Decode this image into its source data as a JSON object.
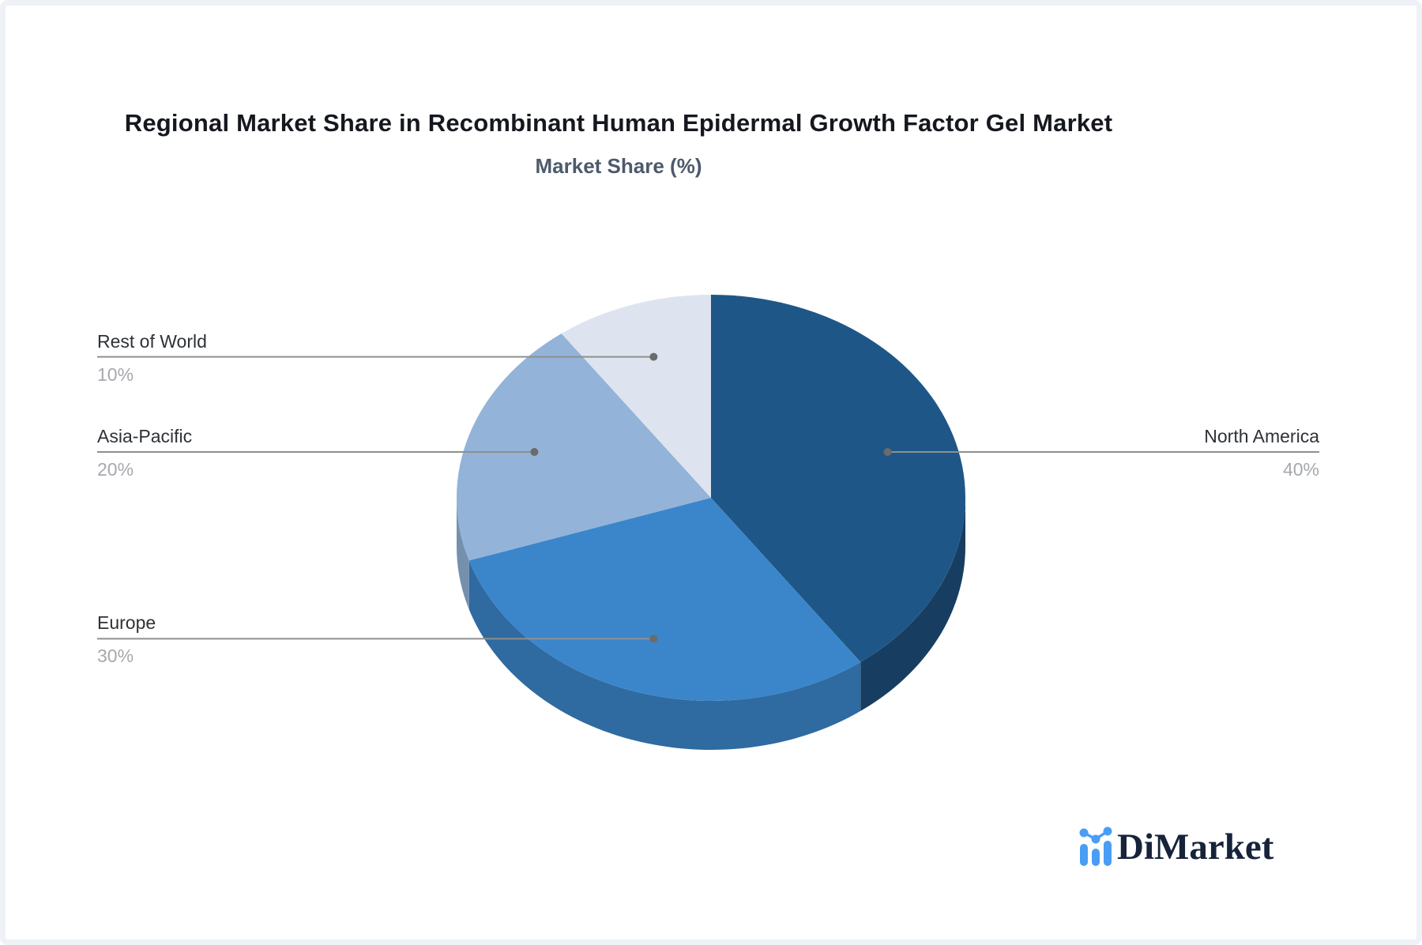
{
  "chart_data": {
    "type": "pie",
    "title": "Regional Market Share in Recombinant Human Epidermal Growth Factor Gel Market",
    "subtitle": "Market Share (%)",
    "unit": "%",
    "is_3d": true,
    "direction": "clockwise",
    "start_angle_deg": 0,
    "legend_position": "none",
    "slices": [
      {
        "name": "North America",
        "value": 40,
        "pct_label": "40%",
        "color": "#1e5787",
        "side_color": "#173e61",
        "label_side": "right"
      },
      {
        "name": "Europe",
        "value": 30,
        "pct_label": "30%",
        "color": "#3b86ca",
        "side_color": "#2f6aa0",
        "label_side": "left"
      },
      {
        "name": "Asia-Pacific",
        "value": 20,
        "pct_label": "20%",
        "color": "#93b3d9",
        "side_color": "#7590ac",
        "label_side": "left"
      },
      {
        "name": "Rest of World",
        "value": 10,
        "pct_label": "10%",
        "color": "#dde4ef",
        "side_color": "#b8c5d9",
        "label_side": "left"
      }
    ],
    "leader_style": {
      "line_color": "#8f8f8f",
      "dot_color": "#6b6b6b",
      "name_color": "#2e3237",
      "pct_color": "#a5a8ad"
    }
  },
  "logo": {
    "text": "DiMarket",
    "icon": "mini-bar-chart-icon",
    "icon_color": "#4a9df5",
    "text_color": "#16233a"
  }
}
